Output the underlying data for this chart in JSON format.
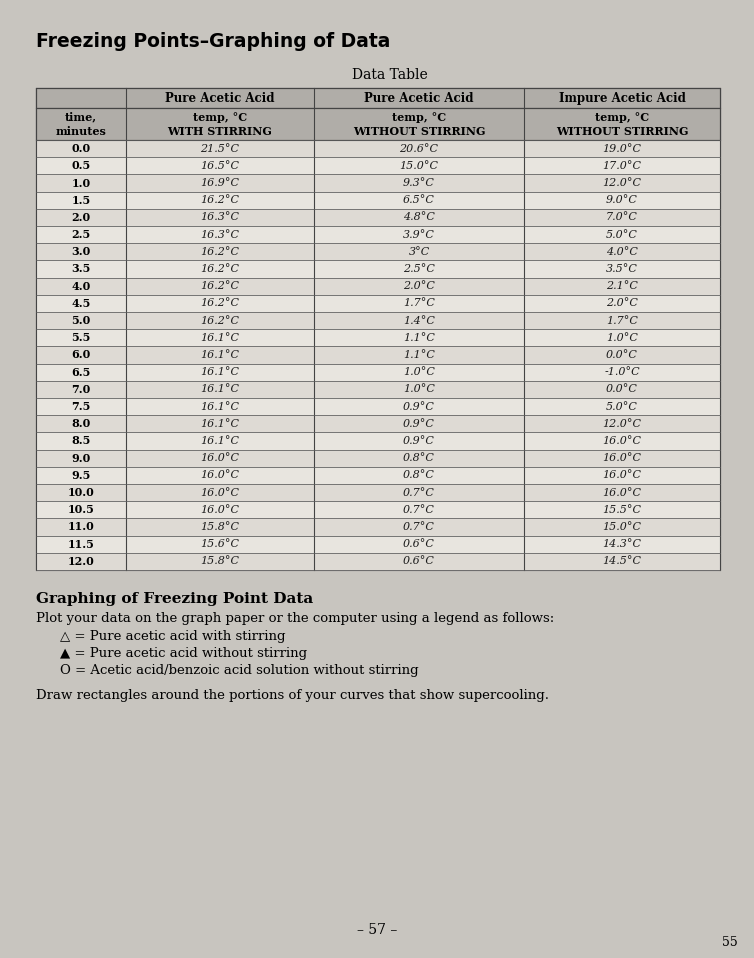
{
  "title": "Freezing Points–Graphing of Data",
  "subtitle": "Data Table",
  "page_bg": "#c8c5bf",
  "table_bg": "#e8e5df",
  "header_bg": "#b0ada8",
  "row_even": "#dedad4",
  "row_odd": "#e8e5df",
  "col_headers_row1": [
    "",
    "Pure Acetic Acid",
    "Pure Acetic Acid",
    "Impure Acetic Acid"
  ],
  "col_headers_row2_line1": [
    "time,",
    "temp, °C",
    "temp, °C",
    "temp, °C"
  ],
  "col_headers_row2_line2": [
    "minutes",
    "WITH STIRRING",
    "WITHOUT STIRRING",
    "WITHOUT STIRRING"
  ],
  "time_col": [
    "0.0",
    "0.5",
    "1.0",
    "1.5",
    "2.0",
    "2.5",
    "3.0",
    "3.5",
    "4.0",
    "4.5",
    "5.0",
    "5.5",
    "6.0",
    "6.5",
    "7.0",
    "7.5",
    "8.0",
    "8.5",
    "9.0",
    "9.5",
    "10.0",
    "10.5",
    "11.0",
    "11.5",
    "12.0"
  ],
  "col1": [
    "21.5°C",
    "16.5°C",
    "16.9°C",
    "16.2°C",
    "16.3°C",
    "16.3°C",
    "16.2°C",
    "16.2°C",
    "16.2°C",
    "16.2°C",
    "16.2°C",
    "16.1°C",
    "16.1°C",
    "16.1°C",
    "16.1°C",
    "16.1°C",
    "16.1°C",
    "16.1°C",
    "16.0°C",
    "16.0°C",
    "16.0°C",
    "16.0°C",
    "15.8°C",
    "15.6°C",
    "15.8°C"
  ],
  "col2": [
    "20.6°C",
    "15.0°C",
    "9.3°C",
    "6.5°C",
    "4.8°C",
    "3.9°C",
    "3°C",
    "2.5°C",
    "2.0°C",
    "1.7°C",
    "1.4°C",
    "1.1°C",
    "1.1°C",
    "1.0°C",
    "1.0°C",
    "0.9°C",
    "0.9°C",
    "0.9°C",
    "0.8°C",
    "0.8°C",
    "0.7°C",
    "0.7°C",
    "0.7°C",
    "0.6°C",
    "0.6°C"
  ],
  "col3": [
    "19.0°C",
    "17.0°C",
    "12.0°C",
    "9.0°C",
    "7.0°C",
    "5.0°C",
    "4.0°C",
    "3.5°C",
    "2.1°C",
    "2.0°C",
    "1.7°C",
    "1.0°C",
    "0.0°C",
    "-1.0°C",
    "0.0°C",
    "5.0°C",
    "12.0°C",
    "16.0°C",
    "16.0°C",
    "16.0°C",
    "16.0°C",
    "15.5°C",
    "15.0°C",
    "14.3°C",
    "14.5°C"
  ],
  "section2_title": "Graphing of Freezing Point Data",
  "section2_body": "Plot your data on the graph paper or the computer using a legend as follows:",
  "legend_items": [
    "△ = Pure acetic acid with stirring",
    "▲ = Pure acetic acid without stirring",
    "O = Acetic acid/benzoic acid solution without stirring"
  ],
  "footer_text": "Draw rectangles around the portions of your curves that show supercooling.",
  "page_number": "– 57 –",
  "corner_number": "55"
}
